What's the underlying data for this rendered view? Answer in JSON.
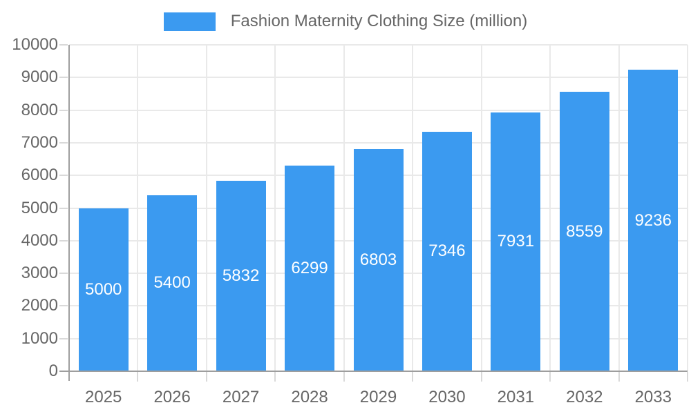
{
  "chart_data": {
    "type": "bar",
    "title": "Fashion Maternity Clothing Size (million)",
    "categories": [
      "2025",
      "2026",
      "2027",
      "2028",
      "2029",
      "2030",
      "2031",
      "2032",
      "2033"
    ],
    "values": [
      5000,
      5400,
      5832,
      6299,
      6803,
      7346,
      7931,
      8559,
      9236
    ],
    "series_name": "Fashion Maternity Clothing Size (million)",
    "xlabel": "",
    "ylabel": "",
    "ylim": [
      0,
      10000
    ],
    "ytick_step": 1000,
    "grid": true,
    "legend_position": "top",
    "value_labels": "inside-center"
  },
  "colors": {
    "bar": "#3b9af0",
    "axis_border": "#9e9e9e",
    "gridline": "#e9e9e9",
    "tick_mark": "#d9d9d9",
    "tick_label": "#666666",
    "value_label": "#ffffff",
    "background": "#ffffff"
  }
}
